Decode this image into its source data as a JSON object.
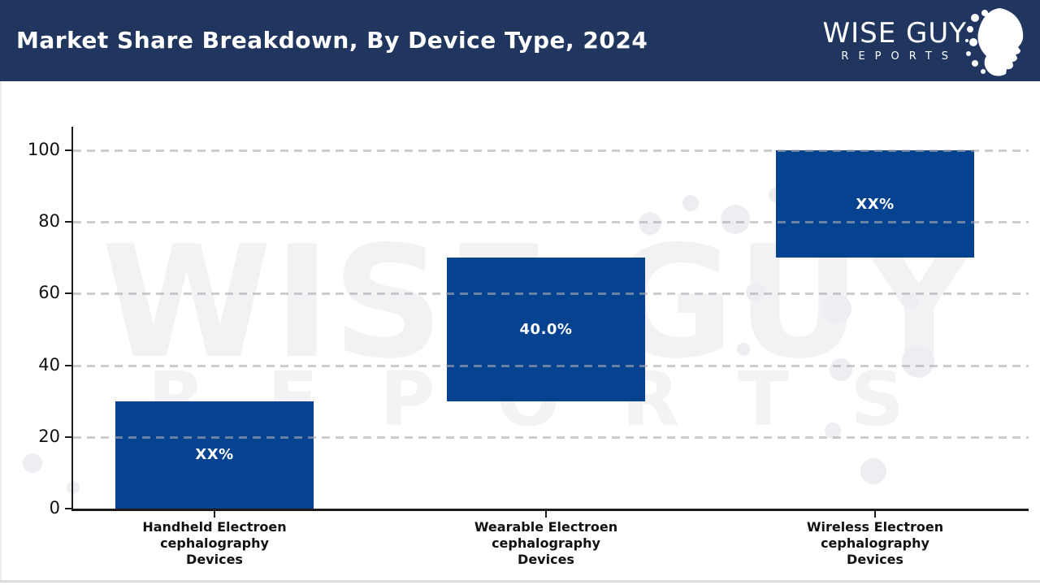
{
  "header": {
    "title": "Market Share Breakdown, By Device Type, 2024",
    "background_color": "#21365f",
    "logo": {
      "line1": "WISE GUY",
      "line2": "REPORTS"
    }
  },
  "watermark": {
    "line1": "WISE GUY",
    "line2": "REPORTS"
  },
  "chart_data": {
    "type": "bar",
    "subtype": "floating-segment-waterfall",
    "title": "Market Share Breakdown, By Device Type, 2024",
    "xlabel": "",
    "ylabel": "",
    "categories": [
      "Handheld Electroen\ncephalography\nDevices",
      "Wearable Electroen\ncephalography\nDevices",
      "Wireless Electroen\ncephalography\nDevices"
    ],
    "segments": [
      {
        "start": 0,
        "end": 30,
        "label": "XX%"
      },
      {
        "start": 30,
        "end": 70,
        "label": "40.0%"
      },
      {
        "start": 70,
        "end": 100,
        "label": "XX%"
      }
    ],
    "yticks": [
      0,
      20,
      40,
      60,
      80,
      100
    ],
    "ylim": [
      0,
      106
    ],
    "grid": "dashed, drawn above bars",
    "legend": "none",
    "bar_color": "#05428f",
    "bar_label_color": "#ffffff",
    "axis_color": "#1c1c1c"
  }
}
